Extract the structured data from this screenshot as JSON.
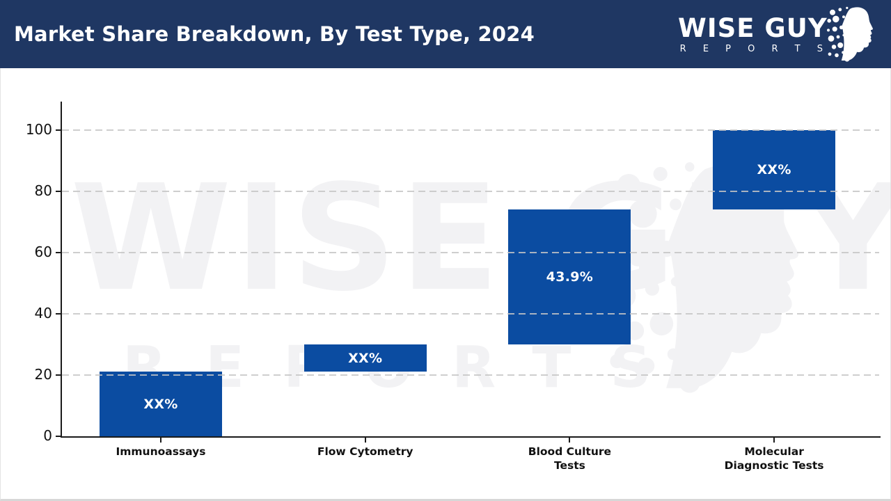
{
  "header": {
    "title": "Market Share Breakdown, By Test Type, 2024",
    "logo": {
      "line1": "WISE GUY",
      "line2": "REPORTS"
    },
    "bg_color": "#1f3763"
  },
  "watermark": {
    "line1": "WISE GUY",
    "line2": "REPORTS"
  },
  "chart_data": {
    "type": "bar",
    "subtype": "waterfall",
    "title": "Market Share Breakdown, By Test Type, 2024",
    "categories": [
      "Immunoassays",
      "Flow Cytometry",
      "Blood Culture\nTests",
      "Molecular\nDiagnostic Tests"
    ],
    "segments": [
      {
        "category": "Immunoassays",
        "start": 0,
        "end": 21,
        "label": "XX%"
      },
      {
        "category": "Flow Cytometry",
        "start": 21,
        "end": 30,
        "label": "XX%"
      },
      {
        "category": "Blood Culture Tests",
        "start": 30,
        "end": 73.9,
        "label": "43.9%"
      },
      {
        "category": "Molecular Diagnostic Tests",
        "start": 73.9,
        "end": 100,
        "label": "XX%"
      }
    ],
    "xlabel": "",
    "ylabel": "",
    "ylim": [
      0,
      100
    ],
    "yticks": [
      0,
      20,
      40,
      60,
      80,
      100
    ],
    "grid": "horizontal-dashed-over-bars",
    "legend": "none",
    "bar_color": "#0b4ca1",
    "bar_label_color": "#ffffff",
    "axis_color": "#1a1a1a",
    "grid_color": "#c5c5c5",
    "watermark_color": "#f2f2f4"
  }
}
